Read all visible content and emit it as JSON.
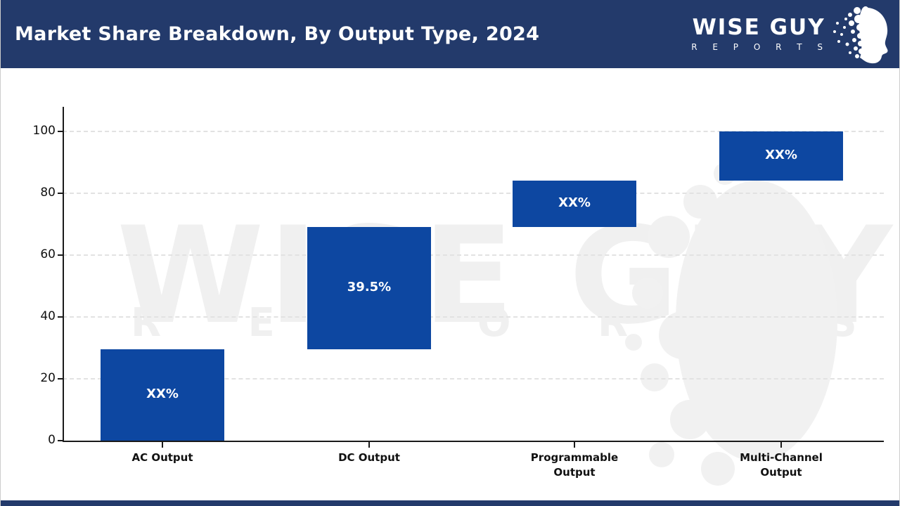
{
  "header": {
    "title": "Market Share Breakdown, By Output Type, 2024",
    "logo": {
      "wordmark": "WISE GUY",
      "subtext": "R E P O R T S"
    }
  },
  "watermark": {
    "line1": "WISE GUY",
    "line2": "R E P O R T S"
  },
  "colors": {
    "header_bg": "#233a6b",
    "footer_bg": "#233a6b",
    "bar": "#0d47a1",
    "bar_label": "#ffffff",
    "grid": "#e2e2e2",
    "axis": "#1a1a1a",
    "watermark": "#f0f0f0"
  },
  "chart_data": {
    "type": "bar",
    "subtype": "waterfall",
    "title": "Market Share Breakdown, By Output Type, 2024",
    "xlabel": "",
    "ylabel": "",
    "categories": [
      "AC Output",
      "DC Output",
      "Programmable Output",
      "Multi-Channel Output"
    ],
    "xtick_label_lines": [
      [
        "AC Output"
      ],
      [
        "DC Output"
      ],
      [
        "Programmable",
        "Output"
      ],
      [
        "Multi-Channel",
        "Output"
      ]
    ],
    "segments": [
      {
        "category": "AC Output",
        "start": 0,
        "end": 29.6,
        "height": 29.6,
        "label": "XX%"
      },
      {
        "category": "DC Output",
        "start": 29.6,
        "end": 69.1,
        "height": 39.5,
        "label": "39.5%"
      },
      {
        "category": "Programmable Output",
        "start": 69.1,
        "end": 84.0,
        "height": 14.9,
        "label": "XX%"
      },
      {
        "category": "Multi-Channel Output",
        "start": 84.0,
        "end": 100.0,
        "height": 16.0,
        "label": "XX%"
      }
    ],
    "y_ticks": [
      0,
      20,
      40,
      60,
      80,
      100
    ],
    "ylim": [
      0,
      108
    ],
    "grid": "horizontal-dashed",
    "legend": "none"
  }
}
